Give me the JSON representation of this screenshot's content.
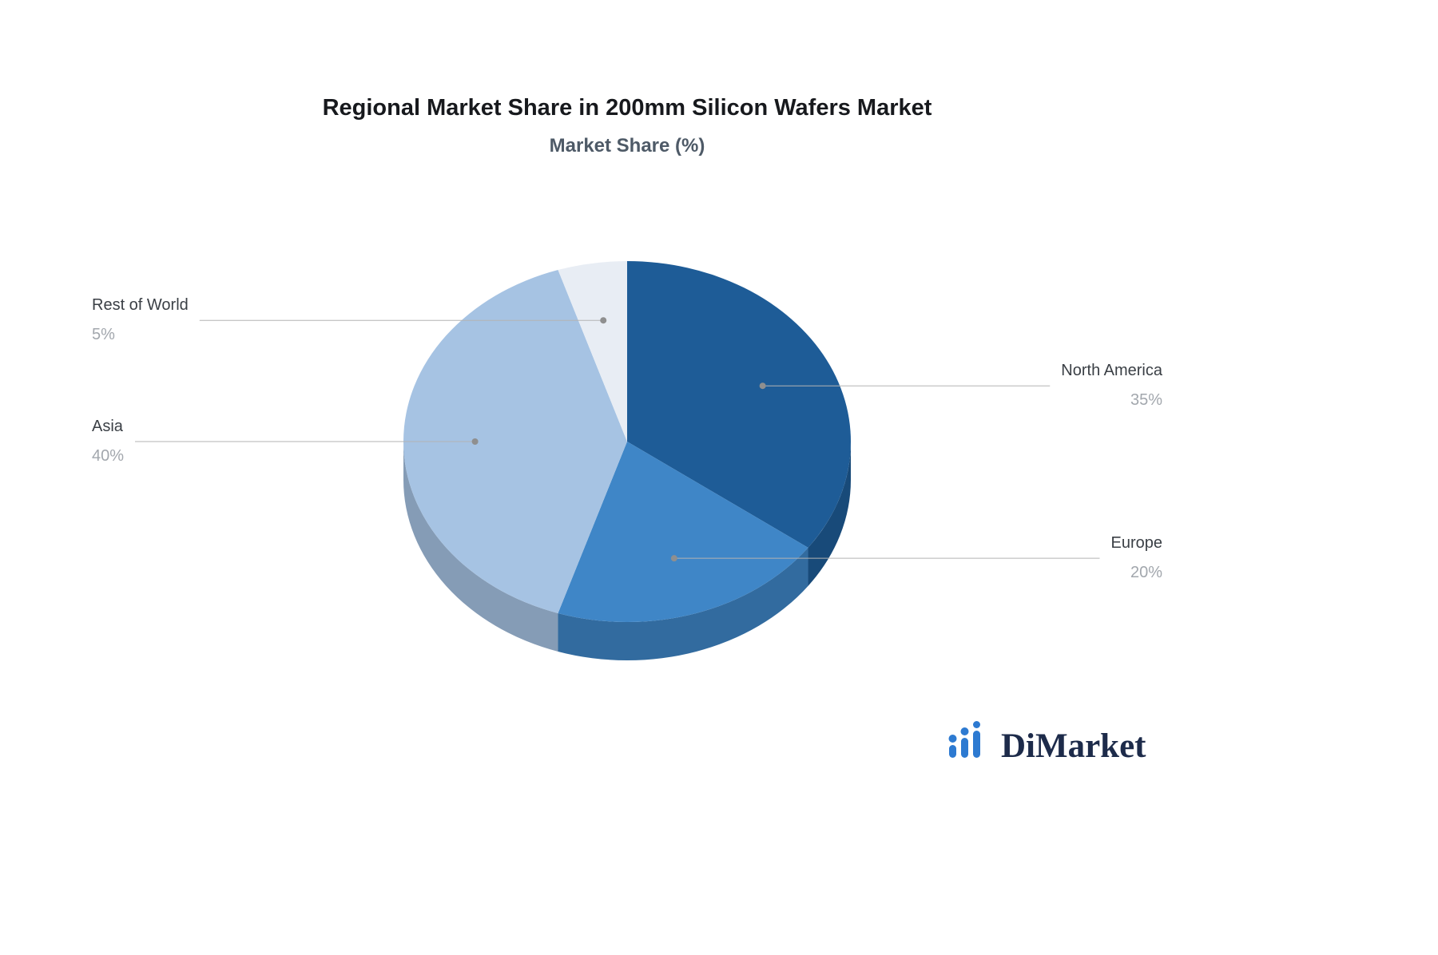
{
  "brand": {
    "name": "DiMarket"
  },
  "chart_data": {
    "type": "pie",
    "title": "Regional Market Share in 200mm Silicon Wafers Market",
    "subtitle": "Market Share (%)",
    "unit": "%",
    "effect": "3d",
    "start_angle_deg": -90,
    "direction": "clockwise",
    "legend_position": "none",
    "label_style": "leader-lines",
    "leader_line_color": "#b3b3b3",
    "leader_dot_color": "#8f8f8f",
    "segments": [
      {
        "label": "North America",
        "value": 35,
        "display": "35%",
        "color": "#1e5c97",
        "label_side": "right"
      },
      {
        "label": "Europe",
        "value": 20,
        "display": "20%",
        "color": "#3f86c7",
        "label_side": "right"
      },
      {
        "label": "Asia",
        "value": 40,
        "display": "40%",
        "color": "#a6c3e3",
        "label_side": "left"
      },
      {
        "label": "Rest of World",
        "value": 5,
        "display": "5%",
        "color": "#e8edf4",
        "label_side": "left"
      }
    ]
  }
}
